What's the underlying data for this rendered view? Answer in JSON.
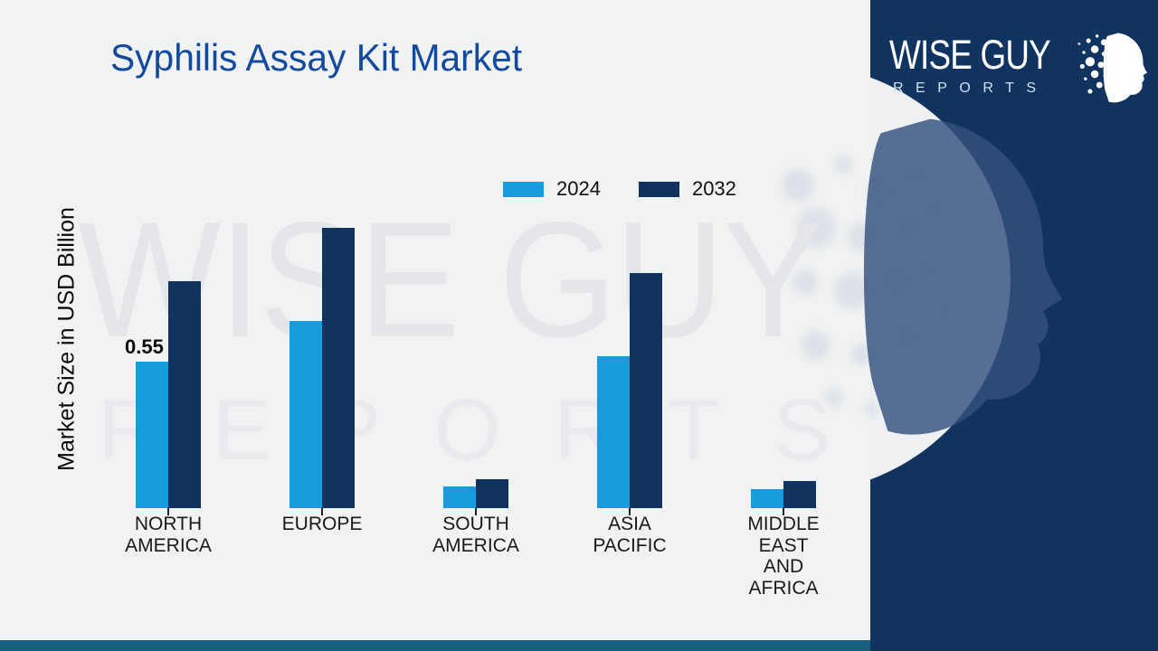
{
  "page": {
    "title": "Syphilis Assay Kit Market",
    "background_color": "#f1f2f2",
    "title_color": "#134a9e",
    "panel_navy": "#11335f",
    "footer_teal": "#19607f"
  },
  "brand": {
    "name_line1": "WISE GUY",
    "name_line2": "REPORTS",
    "watermark_line1": "WISE GUY",
    "watermark_line2": "REPORTS"
  },
  "chart_data": {
    "type": "bar",
    "title": "Syphilis Assay Kit Market",
    "xlabel": "",
    "ylabel": "Market Size in USD Billion",
    "categories": [
      "NORTH AMERICA",
      "EUROPE",
      "SOUTH AMERICA",
      "ASIA PACIFIC",
      "MIDDLE EAST AND AFRICA"
    ],
    "category_lines": [
      [
        "NORTH",
        "AMERICA"
      ],
      [
        "EUROPE"
      ],
      [
        "SOUTH",
        "AMERICA"
      ],
      [
        "ASIA",
        "PACIFIC"
      ],
      [
        "MIDDLE",
        "EAST",
        "AND",
        "AFRICA"
      ]
    ],
    "series": [
      {
        "name": "2024",
        "color": "#189bdc",
        "values": [
          0.55,
          0.7,
          0.08,
          0.57,
          0.07
        ]
      },
      {
        "name": "2032",
        "color": "#12335e",
        "values": [
          0.85,
          1.05,
          0.11,
          0.88,
          0.1
        ]
      }
    ],
    "data_labels": [
      {
        "series": "2024",
        "category": "NORTH AMERICA",
        "text": "0.55"
      }
    ],
    "ylim": [
      0,
      1.1
    ],
    "grid": false,
    "legend_position": "top-center",
    "y_axis_ticks_visible": false
  }
}
